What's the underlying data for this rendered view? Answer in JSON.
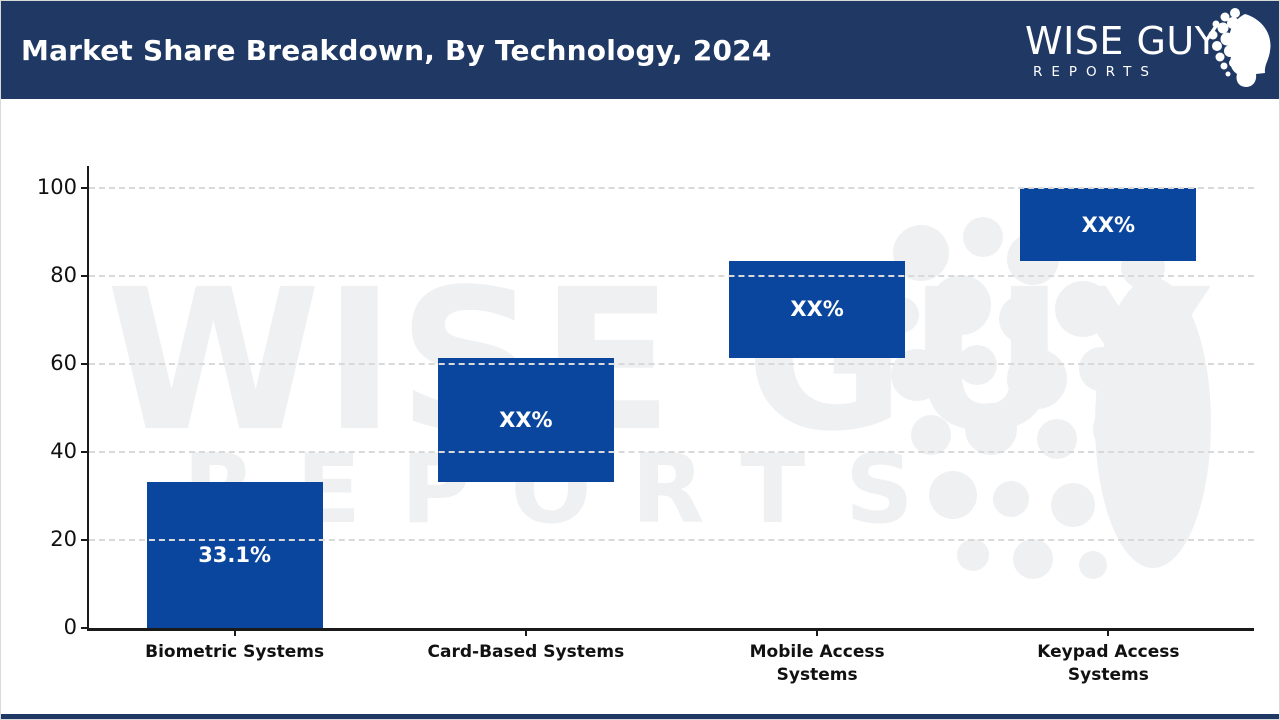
{
  "header": {
    "title": "Market Share Breakdown, By Technology, 2024",
    "logo": {
      "name": "WISE GUY",
      "sub": "REPORTS"
    }
  },
  "watermark": {
    "line1": "WISE GUY",
    "line2": "REPORTS"
  },
  "chart_data": {
    "type": "bar",
    "subtype": "waterfall",
    "title": "Market Share Breakdown, By Technology, 2024",
    "categories": [
      "Biometric Systems",
      "Card-Based Systems",
      "Mobile Access Systems",
      "Keypad Access Systems"
    ],
    "category_tick_labels": [
      "Biometric Systems",
      "Card-Based Systems",
      "Mobile Access\nSystems",
      "Keypad Access\nSystems"
    ],
    "series": [
      {
        "name": "Market share (%)",
        "segments": [
          {
            "category": "Biometric Systems",
            "start": 0,
            "end": 33.1,
            "label": "33.1%"
          },
          {
            "category": "Card-Based Systems",
            "start": 33.1,
            "end": 61.4,
            "label": "XX%"
          },
          {
            "category": "Mobile Access Systems",
            "start": 61.4,
            "end": 83.4,
            "label": "XX%"
          },
          {
            "category": "Keypad Access Systems",
            "start": 83.4,
            "end": 100,
            "label": "XX%"
          }
        ]
      }
    ],
    "ylim": [
      0,
      100
    ],
    "yticks": [
      0,
      20,
      40,
      60,
      80,
      100
    ],
    "xlabel": "",
    "ylabel": "",
    "grid": "horizontal-dashed",
    "legend": "none",
    "bar_color": "#0b469e",
    "bar_label_color": "#ffffff"
  },
  "colors": {
    "header_bg": "#1f3864",
    "footer_bg": "#1f3864",
    "axis": "#1a1a1a",
    "gridline": "#d9d9d9",
    "watermark": "#eff0f2",
    "tick_label": "#111111"
  }
}
